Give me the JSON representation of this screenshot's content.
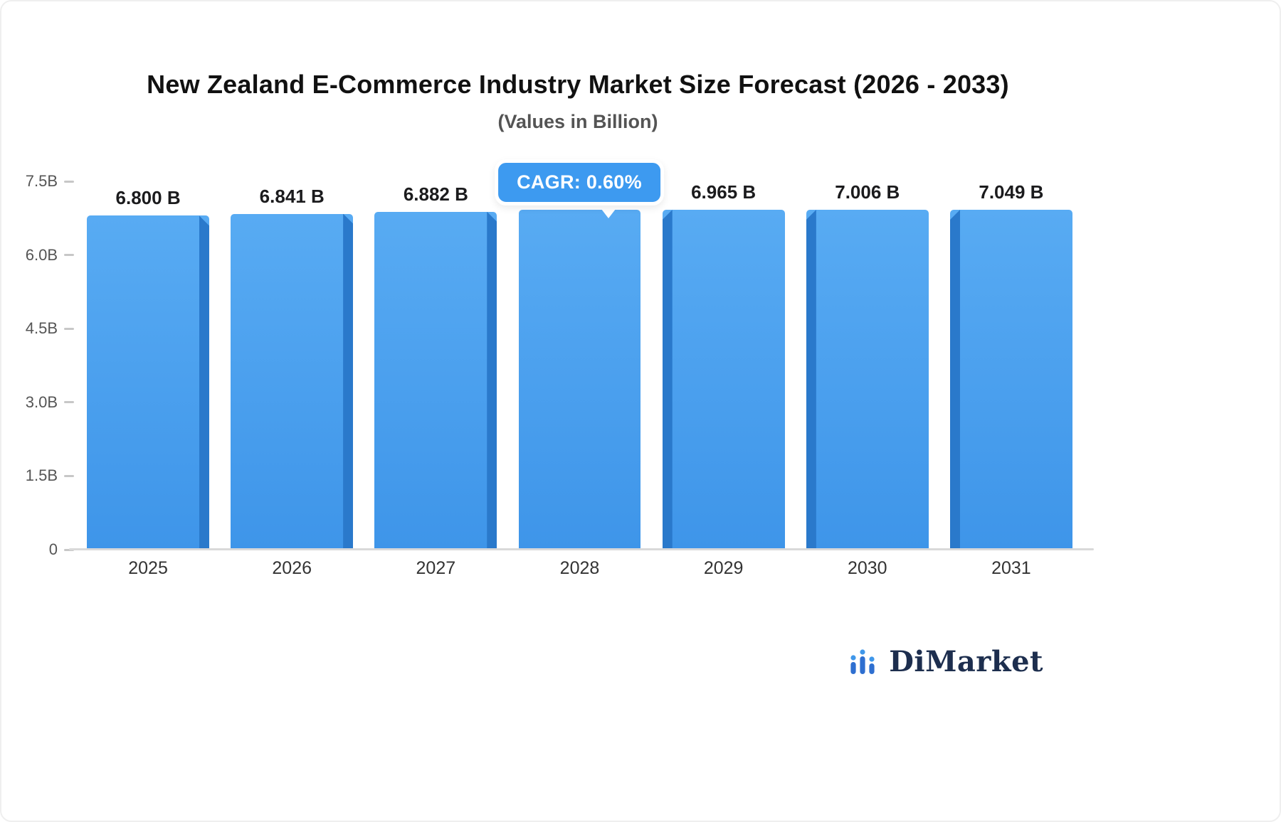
{
  "chart_data": {
    "type": "bar",
    "title": "New Zealand E-Commerce Industry Market Size Forecast (2026 - 2033)",
    "subtitle": "(Values in Billion)",
    "categories": [
      "2025",
      "2026",
      "2027",
      "2028",
      "2029",
      "2030",
      "2031"
    ],
    "values": [
      6.8,
      6.841,
      6.882,
      6.923,
      6.965,
      7.006,
      7.049
    ],
    "value_labels": [
      "6.800 B",
      "6.841 B",
      "6.882 B",
      "",
      "6.965 B",
      "7.006 B",
      "7.049 B"
    ],
    "ylim": [
      0,
      7.5
    ],
    "ytick_labels": [
      "7.5B",
      "6.0B",
      "4.5B",
      "3.0B",
      "1.5B",
      "0"
    ],
    "ytick_values": [
      7.5,
      6.0,
      4.5,
      3.0,
      1.5,
      0
    ],
    "grid": false,
    "legend": "none",
    "bar_color": "#45a1f0",
    "bar_side_color": "#2a79cb"
  },
  "annotations": {
    "cagr_label": "CAGR: 0.60%"
  },
  "branding": {
    "logo_text": "DiMarket"
  }
}
